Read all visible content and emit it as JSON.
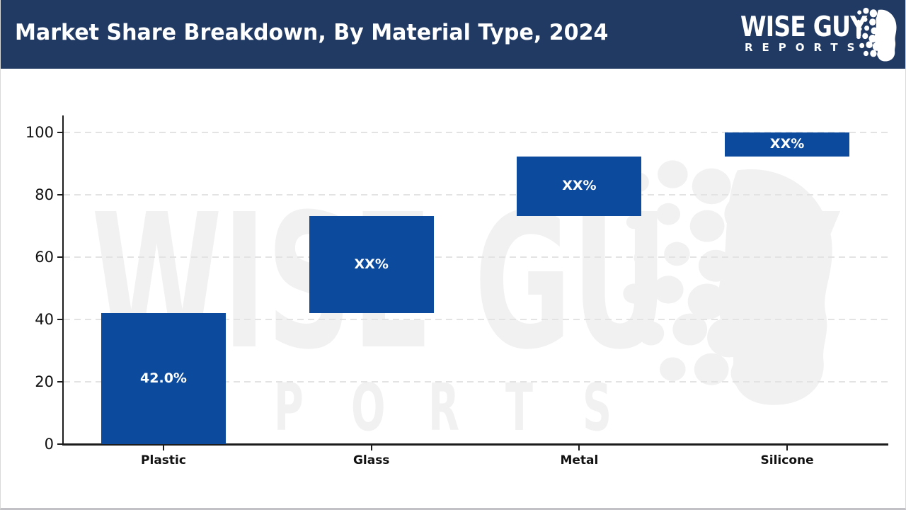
{
  "header": {
    "title": "Market Share Breakdown, By Material Type, 2024",
    "logo": {
      "wordmark": "WISE GUY",
      "sub": "REPORTS",
      "icon": "dotted-face-profile"
    }
  },
  "watermark": {
    "word1": "WISE GU",
    "word1_tail": "Y",
    "word2_letters": [
      "R",
      "E",
      "P",
      "O",
      "R",
      "T",
      "S"
    ],
    "icon": "dotted-face-profile"
  },
  "colors": {
    "header_bg": "#213A64",
    "bar": "#0C4A9E",
    "bar_label": "#FFFFFF",
    "grid": "#E3E3E3",
    "axis": "#1C1C1C",
    "watermark": "#F1F1F2",
    "page_border": "#C2C2C6"
  },
  "chart_data": {
    "type": "bar",
    "subtype": "waterfall",
    "title": "Market Share Breakdown, By Material Type, 2024",
    "categories": [
      "Plastic",
      "Glass",
      "Metal",
      "Silicone"
    ],
    "segments": [
      {
        "category": "Plastic",
        "start": 0,
        "end": 42,
        "label": "42.0%"
      },
      {
        "category": "Glass",
        "start": 42,
        "end": 73.2,
        "label": "XX%"
      },
      {
        "category": "Metal",
        "start": 73.2,
        "end": 92.3,
        "label": "XX%"
      },
      {
        "category": "Silicone",
        "start": 92.3,
        "end": 100,
        "label": "XX%"
      }
    ],
    "xlabel": "",
    "ylabel": "",
    "ylim": [
      0,
      100
    ],
    "yticks": [
      0,
      20,
      40,
      60,
      80,
      100
    ],
    "grid": "horizontal-dashed",
    "legend": "none"
  }
}
